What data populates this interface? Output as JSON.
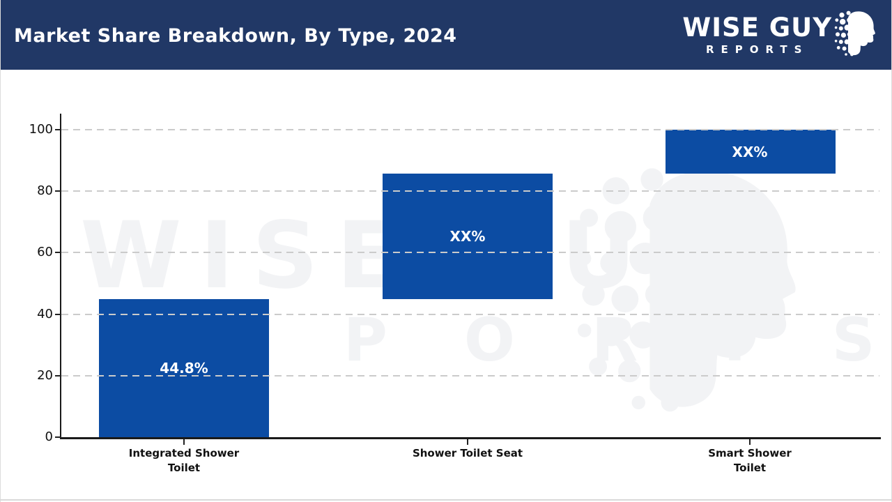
{
  "header": {
    "title": "Market Share Breakdown, By Type, 2024",
    "logo": {
      "line1": "WISE GUY",
      "line2": "REPORTS"
    }
  },
  "watermark": {
    "line1": "WISE GUY",
    "line2": "R E P O R T S"
  },
  "chart_data": {
    "type": "bar",
    "subtype": "stacked-waterfall-percent",
    "title": "Market Share Breakdown, By Type, 2024",
    "categories": [
      [
        "Integrated Shower",
        "Toilet"
      ],
      [
        "Shower Toilet Seat"
      ],
      [
        "Smart Shower",
        "Toilet"
      ]
    ],
    "segments": [
      {
        "category": "Integrated Shower Toilet",
        "start": 0,
        "end": 44.8,
        "value": 44.8,
        "label": "44.8%"
      },
      {
        "category": "Shower Toilet Seat",
        "start": 44.8,
        "end": 85.7,
        "value": 40.9,
        "label": "XX%"
      },
      {
        "category": "Smart Shower Toilet",
        "start": 85.7,
        "end": 100,
        "value": 14.3,
        "label": "XX%"
      }
    ],
    "ylim": [
      0,
      105
    ],
    "yticks": [
      0,
      20,
      40,
      60,
      80,
      100
    ],
    "grid": "horizontal-dashed",
    "legend": "none",
    "xlabel": "",
    "ylabel": ""
  },
  "colors": {
    "header_bg": "#213866",
    "bar": "#0c4ca3",
    "grid": "#cbcbcb",
    "axis": "#1a1a1a",
    "watermark": "#f2f3f5",
    "text": "#111111",
    "bar_label": "#ffffff"
  }
}
